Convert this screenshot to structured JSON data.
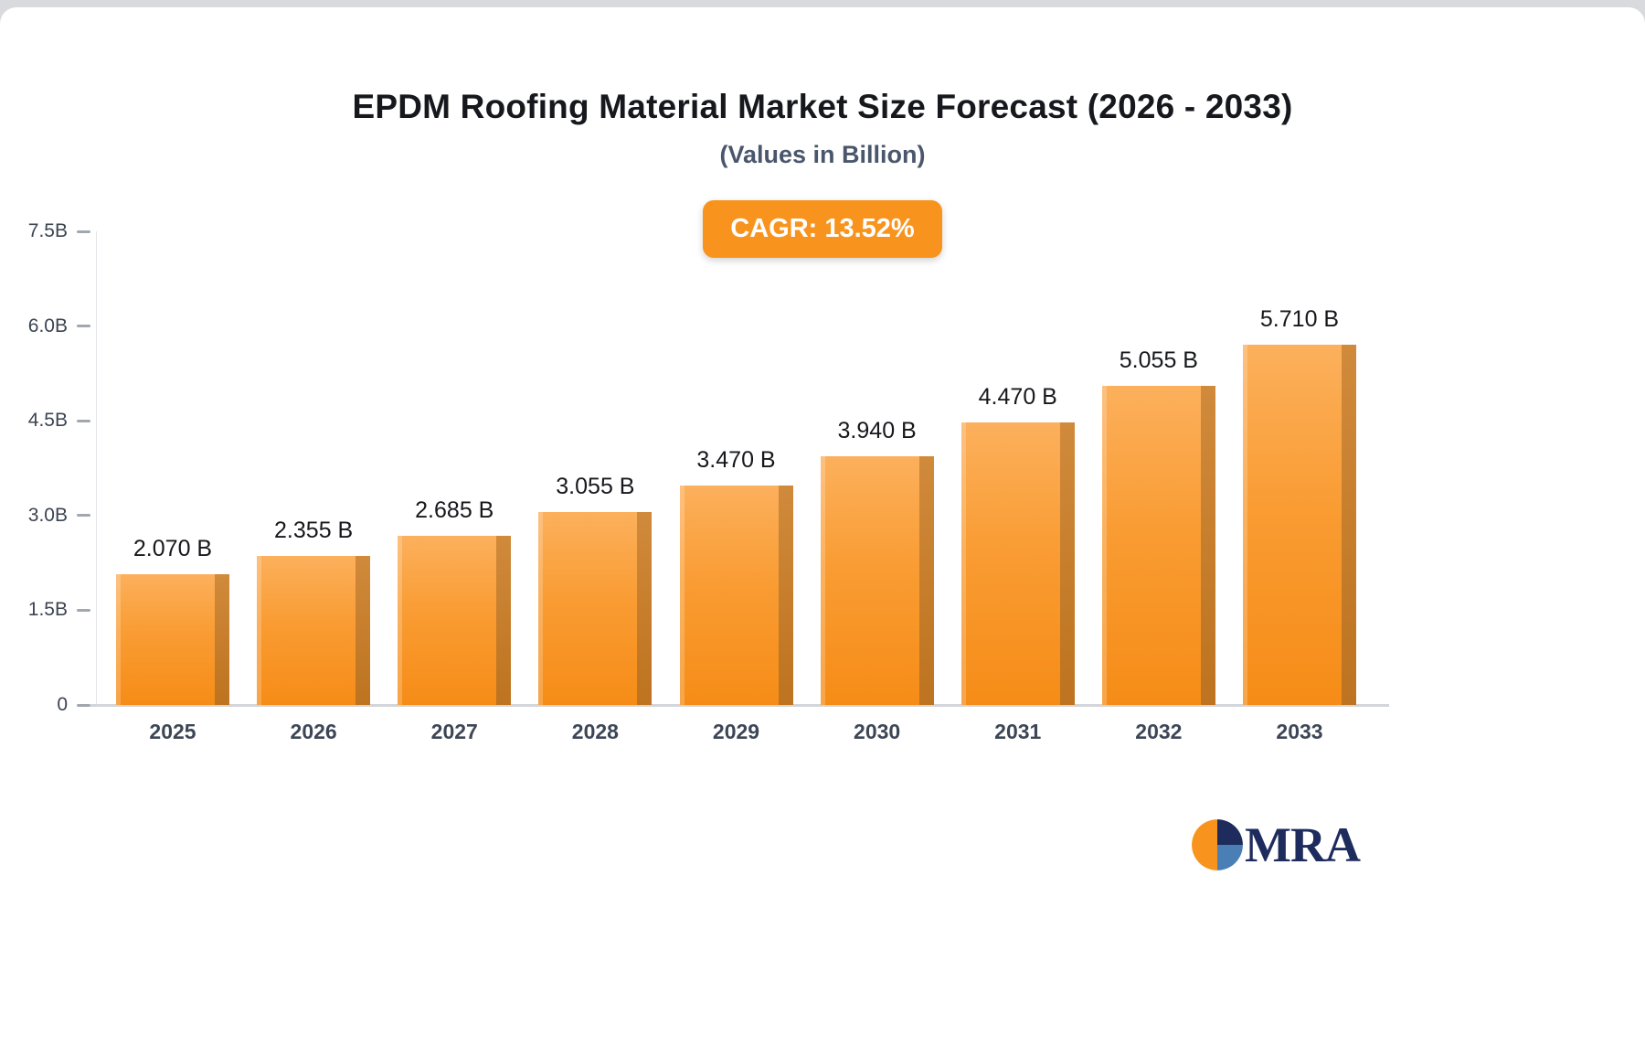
{
  "chart_data": {
    "type": "bar",
    "title": "EPDM Roofing Material Market Size Forecast (2026 - 2033)",
    "subtitle": "(Values in Billion)",
    "cagr_label": "CAGR: 13.52%",
    "categories": [
      "2025",
      "2026",
      "2027",
      "2028",
      "2029",
      "2030",
      "2031",
      "2032",
      "2033"
    ],
    "values": [
      2.07,
      2.355,
      2.685,
      3.055,
      3.47,
      3.94,
      4.47,
      5.055,
      5.71
    ],
    "value_labels": [
      "2.070 B",
      "2.355 B",
      "2.685 B",
      "3.055 B",
      "3.470 B",
      "3.940 B",
      "4.470 B",
      "5.055 B",
      "5.710 B"
    ],
    "xlabel": "",
    "ylabel": "",
    "ylim": [
      0,
      7.5
    ],
    "yticks": [
      {
        "label": "0",
        "value": 0
      },
      {
        "label": "1.5B",
        "value": 1.5
      },
      {
        "label": "3.0B",
        "value": 3.0
      },
      {
        "label": "4.5B",
        "value": 4.5
      },
      {
        "label": "6.0B",
        "value": 6.0
      },
      {
        "label": "7.5B",
        "value": 7.5
      }
    ],
    "grid": false,
    "legend": false,
    "bar_color": "#f8941e",
    "bar_side_color": "#bd731f"
  },
  "logo": {
    "text": "MRA"
  },
  "colors": {
    "accent_orange": "#f8941e",
    "navy": "#1e2b5d",
    "steel_blue": "#4a7fb5",
    "axis_gray": "#d2d5d9"
  }
}
